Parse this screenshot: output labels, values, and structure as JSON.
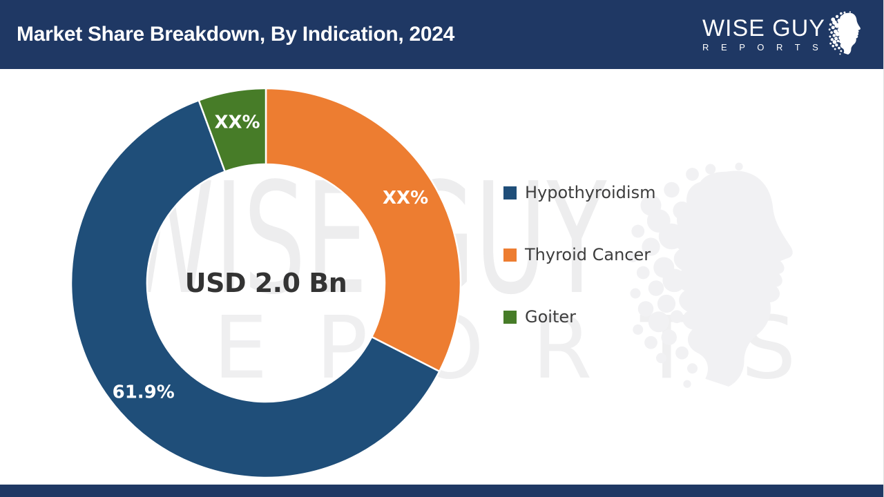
{
  "header": {
    "title": "Market Share Breakdown, By Indication, 2024",
    "brand": {
      "line1": "WISE GUY",
      "line2": "R E P O R T S"
    }
  },
  "watermark": {
    "line1": "WISE GUY",
    "line2": "R E P O R T S"
  },
  "colors": {
    "header_bg": "#1F3864",
    "footer_bg": "#1F3864",
    "title_text": "#ffffff",
    "watermark_gray": "#ededee",
    "legend_text": "#3d3d3d",
    "center_label_text": "#333333"
  },
  "chart_data": {
    "type": "pie",
    "variant": "donut",
    "title": "Market Share Breakdown, By Indication, 2024",
    "year": "2024",
    "center_label": "USD 2.0 Bn",
    "unit": "%",
    "direction": "clockwise",
    "start_angle_deg": 0,
    "legend_position": "right",
    "segments": [
      {
        "name": "Thyroid Cancer",
        "value": 32.5,
        "display_label": "XX%",
        "color": "#ED7D31"
      },
      {
        "name": "Hypothyroidism",
        "value": 61.9,
        "display_label": "61.9%",
        "color": "#1F4E79"
      },
      {
        "name": "Goiter",
        "value": 5.6,
        "display_label": "XX%",
        "color": "#477C28"
      }
    ],
    "legend": {
      "entries": [
        {
          "label": "Hypothyroidism",
          "color": "#1F4E79"
        },
        {
          "label": "Thyroid Cancer",
          "color": "#ED7D31"
        },
        {
          "label": "Goiter",
          "color": "#477C28"
        }
      ]
    }
  }
}
